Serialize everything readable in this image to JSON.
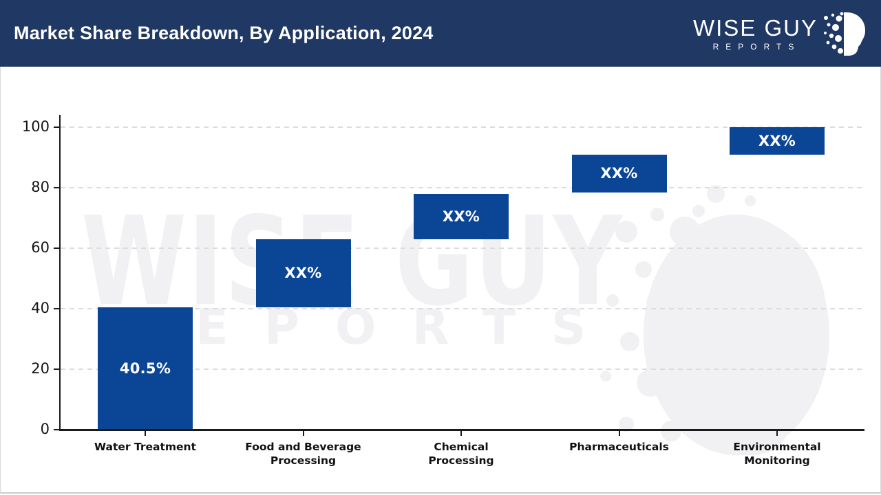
{
  "header": {
    "title": "Market Share Breakdown, By Application, 2024",
    "logo": {
      "line1": "WISE GUY",
      "line2": "REPORTS"
    }
  },
  "watermark": {
    "line1": "WISE GUY",
    "line2": "REPORTS"
  },
  "colors": {
    "header_bg": "#1F3864",
    "bar": "#0B4596",
    "grid": "#DCDCDC",
    "axis": "#1A1A1A",
    "tick_text": "#141414",
    "bar_label_text": "#FFFFFF",
    "watermark": "#F1F1F4",
    "frame_line": "#CCCCCC"
  },
  "chart_data": {
    "type": "bar",
    "subtype": "waterfall",
    "title": "Market Share Breakdown, By Application, 2024",
    "categories": [
      "Water Treatment",
      "Food and Beverage Processing",
      "Chemical Processing",
      "Pharmaceuticals",
      "Environmental Monitoring"
    ],
    "categories_lines": [
      [
        "Water Treatment"
      ],
      [
        "Food and Beverage",
        "Processing"
      ],
      [
        "Chemical",
        "Processing"
      ],
      [
        "Pharmaceuticals"
      ],
      [
        "Environmental",
        "Monitoring"
      ]
    ],
    "segments": [
      {
        "category": "Water Treatment",
        "start": 0,
        "end": 40.5,
        "value_label": "40.5%"
      },
      {
        "category": "Food and Beverage Processing",
        "start": 40.5,
        "end": 63,
        "value_label": "XX%"
      },
      {
        "category": "Chemical Processing",
        "start": 63,
        "end": 78,
        "value_label": "XX%"
      },
      {
        "category": "Pharmaceuticals",
        "start": 78.5,
        "end": 91,
        "value_label": "XX%"
      },
      {
        "category": "Environmental Monitoring",
        "start": 91,
        "end": 100,
        "value_label": "XX%"
      }
    ],
    "xlabel": "",
    "ylabel": "",
    "ylim": [
      0,
      100
    ],
    "yticks": [
      0,
      20,
      40,
      60,
      80,
      100
    ],
    "grid": "horizontal-dashed",
    "legend": "none",
    "bar_color": "#0B4596"
  }
}
